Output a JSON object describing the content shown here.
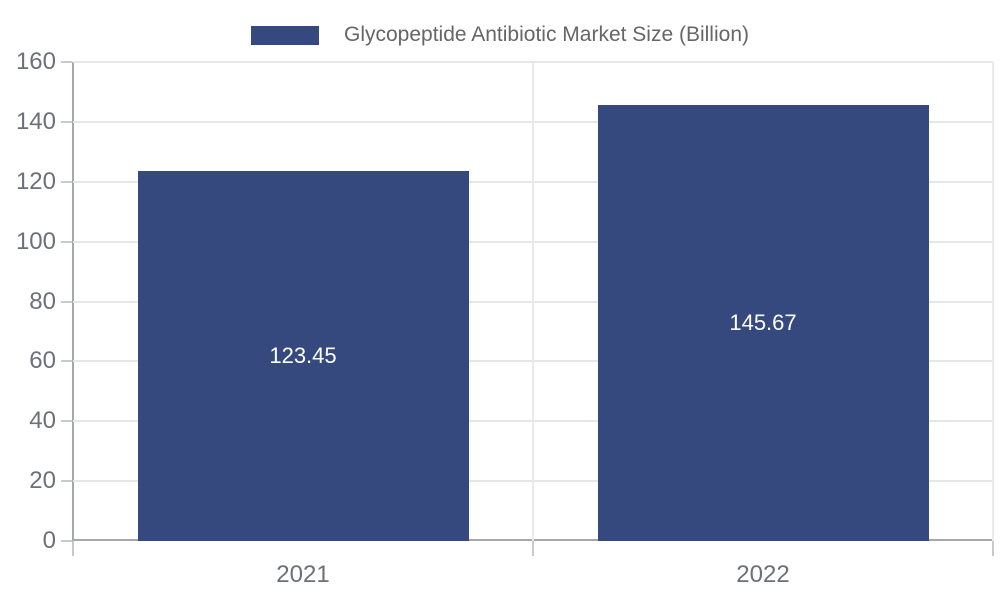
{
  "chart_data": {
    "type": "bar",
    "title": "",
    "legend": "Glycopeptide Antibiotic Market Size (Billion)",
    "categories": [
      "2021",
      "2022"
    ],
    "values": [
      123.45,
      145.67
    ],
    "value_labels": [
      "123.45",
      "145.67"
    ],
    "ylim": [
      0,
      160
    ],
    "yticks": [
      0,
      20,
      40,
      60,
      80,
      100,
      120,
      140,
      160
    ],
    "grid": true,
    "legend_position": "top-center",
    "value_label_position": "inside-center",
    "colors": {
      "bar": "#35497f",
      "grid_line": "#e6e6e6",
      "split_line": "#e9e9ee",
      "axis_line": "#a4a7ab",
      "tick": "#c6c9ce",
      "axis_text": "#6e7079",
      "legend_text": "#666666",
      "value_text": "#ffffff",
      "background": "#ffffff"
    }
  }
}
